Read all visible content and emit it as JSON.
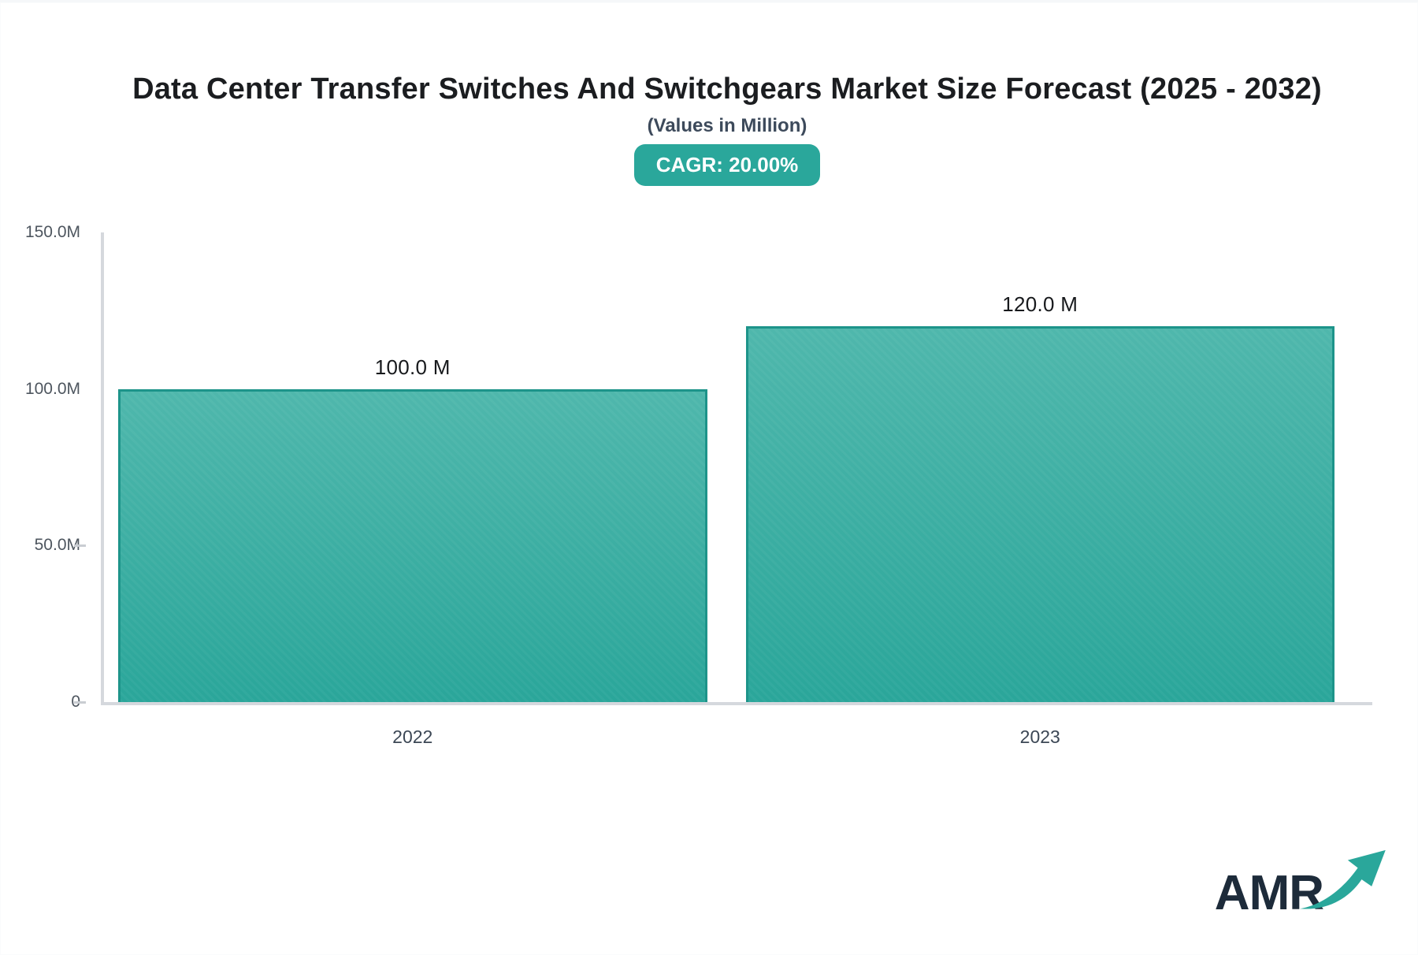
{
  "header": {
    "title": "Data Center Transfer Switches And Switchgears Market Size Forecast (2025 - 2032)",
    "subtitle": "(Values in Million)",
    "cagr_badge": "CAGR: 20.00%"
  },
  "chart_data": {
    "type": "bar",
    "title": "Data Center Transfer Switches And Switchgears Market Size Forecast (2025 - 2032)",
    "subtitle": "(Values in Million)",
    "unit": "Million",
    "cagr_percent": 20.0,
    "categories": [
      "2022",
      "2023"
    ],
    "values": [
      100.0,
      120.0
    ],
    "value_labels": [
      "100.0 M",
      "120.0 M"
    ],
    "xlabel": "",
    "ylabel": "",
    "ylim": [
      0,
      150
    ],
    "yticks": [
      {
        "value": 150,
        "label": "150.0M",
        "tick": false
      },
      {
        "value": 100,
        "label": "100.0M",
        "tick": false
      },
      {
        "value": 50,
        "label": "50.0M",
        "tick": true
      },
      {
        "value": 0,
        "label": "0",
        "tick": true
      }
    ],
    "grid": false,
    "legend": false
  },
  "logo": {
    "text": "AMR",
    "arrow_icon": "upward-trend-arrow"
  },
  "colors": {
    "accent_teal": "#2aa79b",
    "bar_gradient_top": "#4fb7ac",
    "bar_gradient_bottom": "#2aa69a",
    "bar_border": "#1d948a",
    "axis_line": "#d5d8dd",
    "tick_mark": "#c9cdd2",
    "y_label_text": "#4e565f",
    "x_label_text": "#3c4755",
    "title_text": "#1b1d20",
    "subtitle_text": "#3d4a5b",
    "badge_text": "#ffffff",
    "logo_navy": "#1d2b3a"
  }
}
